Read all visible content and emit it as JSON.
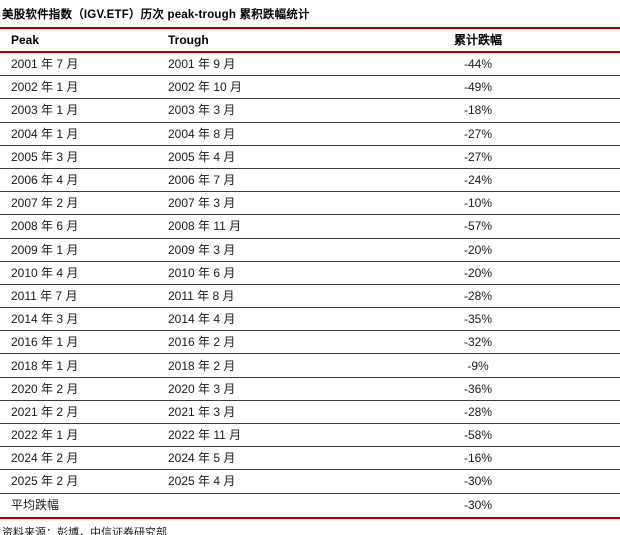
{
  "title": "美股软件指数（IGV.ETF）历次 peak-trough 累积跌幅统计",
  "table": {
    "columns": [
      "Peak",
      "Trough",
      "累计跌幅"
    ],
    "rows": [
      {
        "peak": "2001 年 7 月",
        "trough": "2001 年 9 月",
        "drawdown": "-44%"
      },
      {
        "peak": "2002 年 1 月",
        "trough": "2002 年 10 月",
        "drawdown": "-49%"
      },
      {
        "peak": "2003 年 1 月",
        "trough": "2003 年 3 月",
        "drawdown": "-18%"
      },
      {
        "peak": "2004 年 1 月",
        "trough": "2004 年 8 月",
        "drawdown": "-27%"
      },
      {
        "peak": "2005 年 3 月",
        "trough": "2005 年 4 月",
        "drawdown": "-27%"
      },
      {
        "peak": "2006 年 4 月",
        "trough": "2006 年 7 月",
        "drawdown": "-24%"
      },
      {
        "peak": "2007 年 2 月",
        "trough": "2007 年 3 月",
        "drawdown": "-10%"
      },
      {
        "peak": "2008 年 6 月",
        "trough": "2008 年 11 月",
        "drawdown": "-57%"
      },
      {
        "peak": "2009 年 1 月",
        "trough": "2009 年 3 月",
        "drawdown": "-20%"
      },
      {
        "peak": "2010 年 4 月",
        "trough": "2010 年 6 月",
        "drawdown": "-20%"
      },
      {
        "peak": "2011 年 7 月",
        "trough": "2011 年 8 月",
        "drawdown": "-28%"
      },
      {
        "peak": "2014 年 3 月",
        "trough": "2014 年 4 月",
        "drawdown": "-35%"
      },
      {
        "peak": "2016 年 1 月",
        "trough": "2016 年 2 月",
        "drawdown": "-32%"
      },
      {
        "peak": "2018 年 1 月",
        "trough": "2018 年 2 月",
        "drawdown": "-9%"
      },
      {
        "peak": "2020 年 2 月",
        "trough": "2020 年 3 月",
        "drawdown": "-36%"
      },
      {
        "peak": "2021 年 2 月",
        "trough": "2021 年 3 月",
        "drawdown": "-28%"
      },
      {
        "peak": "2022 年 1 月",
        "trough": "2022 年 11 月",
        "drawdown": "-58%"
      },
      {
        "peak": "2024 年 2 月",
        "trough": "2024 年 5 月",
        "drawdown": "-16%"
      },
      {
        "peak": "2025 年 2 月",
        "trough": "2025 年 4 月",
        "drawdown": "-30%"
      },
      {
        "peak": "平均跌幅",
        "trough": "",
        "drawdown": "-30%"
      }
    ]
  },
  "source": "资料来源：彭博，中信证券研究部",
  "colors": {
    "accent_red": "#a00000",
    "row_divider": "#3a3a3a",
    "text": "#1a1a1a"
  }
}
